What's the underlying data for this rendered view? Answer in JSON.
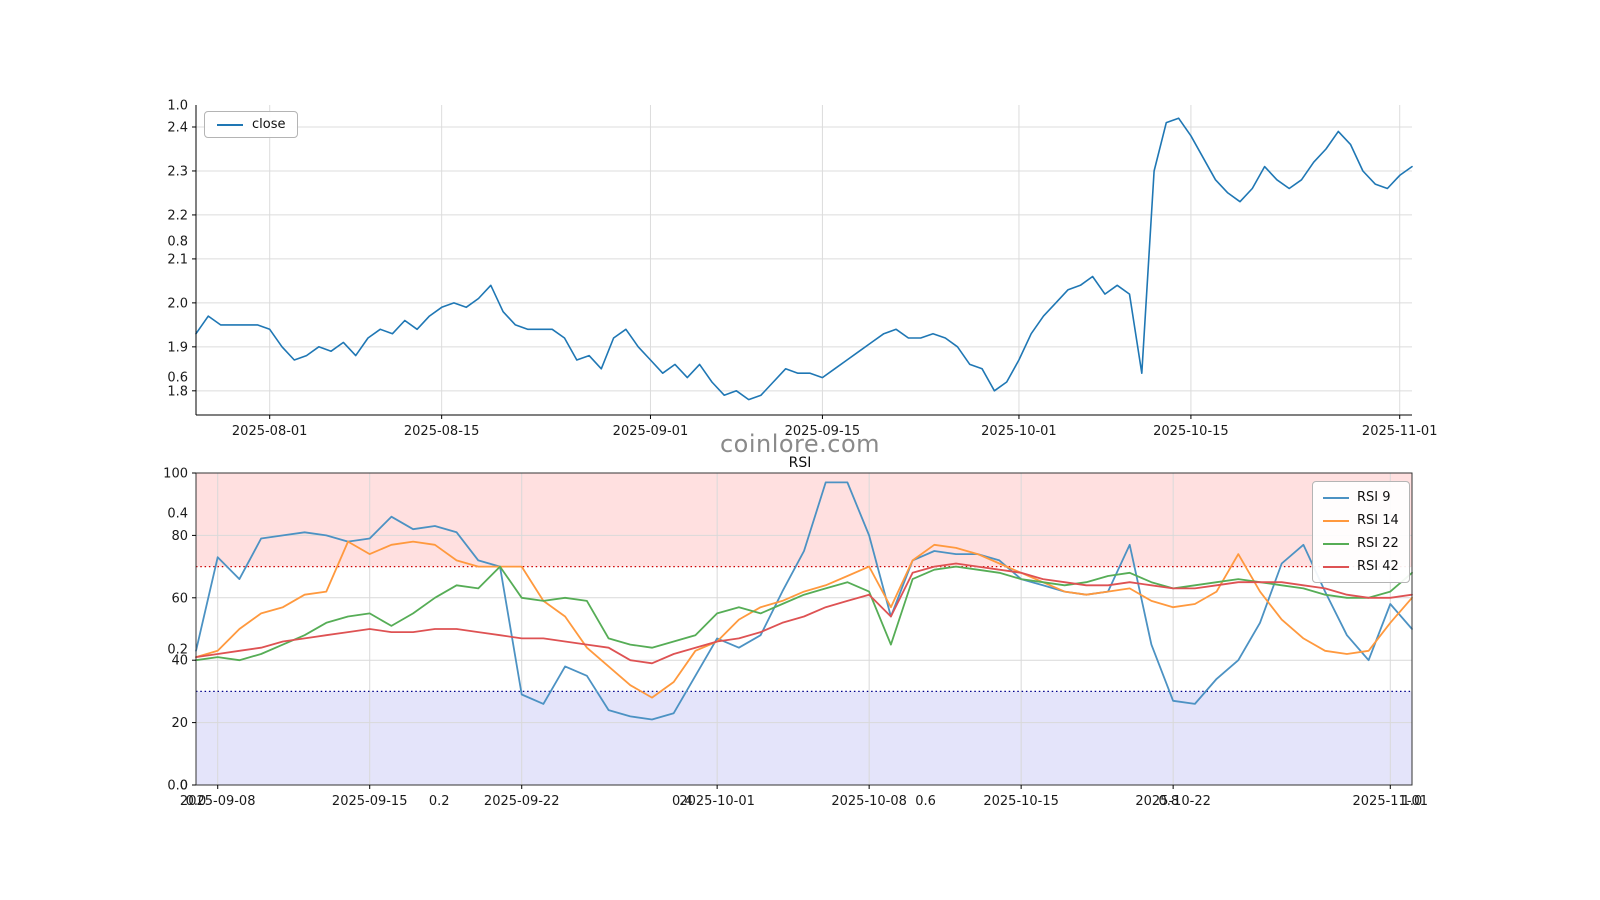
{
  "watermark": "coinlore.com",
  "overlay_axis": {
    "y_ticks": [
      "1.0",
      "0.8",
      "0.6",
      "0.4",
      "0.2",
      "0.0"
    ],
    "x_ticks": [
      "0.0",
      "0.2",
      "0.4",
      "0.6",
      "0.8",
      "1.0"
    ]
  },
  "chart_data": [
    {
      "type": "line",
      "legend_label": "close",
      "color": "#1f77b4",
      "grid": true,
      "ylim": [
        1.745,
        2.45
      ],
      "y_ticks": [
        "2.4",
        "2.3",
        "2.2",
        "2.1",
        "2.0",
        "1.9",
        "1.8"
      ],
      "x_ticks": [
        "2025-08-01",
        "2025-08-15",
        "2025-09-01",
        "2025-09-15",
        "2025-10-01",
        "2025-10-15",
        "2025-11-01"
      ],
      "dates": [
        "2025-07-26",
        "2025-07-27",
        "2025-07-28",
        "2025-07-29",
        "2025-07-30",
        "2025-07-31",
        "2025-08-01",
        "2025-08-02",
        "2025-08-03",
        "2025-08-04",
        "2025-08-05",
        "2025-08-06",
        "2025-08-07",
        "2025-08-08",
        "2025-08-09",
        "2025-08-10",
        "2025-08-11",
        "2025-08-12",
        "2025-08-13",
        "2025-08-14",
        "2025-08-15",
        "2025-08-16",
        "2025-08-17",
        "2025-08-18",
        "2025-08-19",
        "2025-08-20",
        "2025-08-21",
        "2025-08-22",
        "2025-08-23",
        "2025-08-24",
        "2025-08-25",
        "2025-08-26",
        "2025-08-27",
        "2025-08-28",
        "2025-08-29",
        "2025-08-30",
        "2025-08-31",
        "2025-09-01",
        "2025-09-02",
        "2025-09-03",
        "2025-09-04",
        "2025-09-05",
        "2025-09-06",
        "2025-09-07",
        "2025-09-08",
        "2025-09-09",
        "2025-09-10",
        "2025-09-11",
        "2025-09-12",
        "2025-09-13",
        "2025-09-14",
        "2025-09-15",
        "2025-09-16",
        "2025-09-17",
        "2025-09-18",
        "2025-09-19",
        "2025-09-20",
        "2025-09-21",
        "2025-09-22",
        "2025-09-23",
        "2025-09-24",
        "2025-09-25",
        "2025-09-26",
        "2025-09-27",
        "2025-09-28",
        "2025-09-29",
        "2025-09-30",
        "2025-10-01",
        "2025-10-02",
        "2025-10-03",
        "2025-10-04",
        "2025-10-05",
        "2025-10-06",
        "2025-10-07",
        "2025-10-08",
        "2025-10-09",
        "2025-10-10",
        "2025-10-11",
        "2025-10-12",
        "2025-10-13",
        "2025-10-14",
        "2025-10-15",
        "2025-10-16",
        "2025-10-17",
        "2025-10-18",
        "2025-10-19",
        "2025-10-20",
        "2025-10-21",
        "2025-10-22",
        "2025-10-23",
        "2025-10-24",
        "2025-10-25",
        "2025-10-26",
        "2025-10-27",
        "2025-10-28",
        "2025-10-29",
        "2025-10-30",
        "2025-10-31",
        "2025-11-01",
        "2025-11-02"
      ],
      "values": [
        1.93,
        1.97,
        1.95,
        1.95,
        1.95,
        1.95,
        1.94,
        1.9,
        1.87,
        1.88,
        1.9,
        1.89,
        1.91,
        1.88,
        1.92,
        1.94,
        1.93,
        1.96,
        1.94,
        1.97,
        1.99,
        2.0,
        1.99,
        2.01,
        2.04,
        1.98,
        1.95,
        1.94,
        1.94,
        1.94,
        1.92,
        1.87,
        1.88,
        1.85,
        1.92,
        1.94,
        1.9,
        1.87,
        1.84,
        1.86,
        1.83,
        1.86,
        1.82,
        1.79,
        1.8,
        1.78,
        1.79,
        1.82,
        1.85,
        1.84,
        1.84,
        1.83,
        1.85,
        1.87,
        1.89,
        1.91,
        1.93,
        1.94,
        1.92,
        1.92,
        1.93,
        1.92,
        1.9,
        1.86,
        1.85,
        1.8,
        1.82,
        1.87,
        1.93,
        1.97,
        2.0,
        2.03,
        2.04,
        2.06,
        2.02,
        2.04,
        2.02,
        1.84,
        2.3,
        2.41,
        2.42,
        2.38,
        2.33,
        2.28,
        2.25,
        2.23,
        2.26,
        2.31,
        2.28,
        2.26,
        2.28,
        2.32,
        2.35,
        2.39,
        2.36,
        2.3,
        2.27,
        2.26,
        2.29,
        2.31
      ]
    },
    {
      "type": "line",
      "title": "RSI",
      "grid": true,
      "ylim": [
        0,
        100
      ],
      "y_ticks": [
        "100",
        "80",
        "60",
        "40",
        "20",
        "0"
      ],
      "x_ticks": [
        "2025-09-08",
        "2025-09-15",
        "2025-09-22",
        "2025-10-01",
        "2025-10-08",
        "2025-10-15",
        "2025-10-22",
        "2025-11-01"
      ],
      "overbought_level": 70,
      "oversold_level": 30,
      "overbought_band_color": "rgba(255,0,0,0.12)",
      "oversold_band_color": "rgba(30,30,215,0.12)",
      "overbought_line_color": "#cc0000",
      "oversold_line_color": "#00008b",
      "dates": [
        "2025-09-07",
        "2025-09-08",
        "2025-09-09",
        "2025-09-10",
        "2025-09-11",
        "2025-09-12",
        "2025-09-13",
        "2025-09-14",
        "2025-09-15",
        "2025-09-16",
        "2025-09-17",
        "2025-09-18",
        "2025-09-19",
        "2025-09-20",
        "2025-09-21",
        "2025-09-22",
        "2025-09-23",
        "2025-09-24",
        "2025-09-25",
        "2025-09-26",
        "2025-09-27",
        "2025-09-28",
        "2025-09-29",
        "2025-09-30",
        "2025-10-01",
        "2025-10-02",
        "2025-10-03",
        "2025-10-04",
        "2025-10-05",
        "2025-10-06",
        "2025-10-07",
        "2025-10-08",
        "2025-10-09",
        "2025-10-10",
        "2025-10-11",
        "2025-10-12",
        "2025-10-13",
        "2025-10-14",
        "2025-10-15",
        "2025-10-16",
        "2025-10-17",
        "2025-10-18",
        "2025-10-19",
        "2025-10-20",
        "2025-10-21",
        "2025-10-22",
        "2025-10-23",
        "2025-10-24",
        "2025-10-25",
        "2025-10-26",
        "2025-10-27",
        "2025-10-28",
        "2025-10-29",
        "2025-10-30",
        "2025-10-31",
        "2025-11-01",
        "2025-11-02"
      ],
      "series": [
        {
          "name": "RSI 9",
          "color": "#4c92c3",
          "values": [
            43,
            73,
            66,
            79,
            80,
            81,
            80,
            78,
            79,
            86,
            82,
            83,
            81,
            72,
            70,
            29,
            26,
            38,
            35,
            24,
            22,
            21,
            23,
            35,
            47,
            44,
            48,
            62,
            75,
            97,
            97,
            80,
            54,
            72,
            75,
            74,
            74,
            72,
            66,
            64,
            62,
            61,
            62,
            77,
            45,
            27,
            26,
            34,
            40,
            52,
            71,
            77,
            62,
            48,
            40,
            58,
            50
          ]
        },
        {
          "name": "RSI 14",
          "color": "#ff993e",
          "values": [
            41,
            43,
            50,
            55,
            57,
            61,
            62,
            78,
            74,
            77,
            78,
            77,
            72,
            70,
            70,
            70,
            59,
            54,
            44,
            38,
            32,
            28,
            33,
            43,
            46,
            53,
            57,
            59,
            62,
            64,
            67,
            70,
            57,
            72,
            77,
            76,
            74,
            71,
            68,
            65,
            62,
            61,
            62,
            63,
            59,
            57,
            58,
            62,
            74,
            62,
            53,
            47,
            43,
            42,
            43,
            52,
            60
          ]
        },
        {
          "name": "RSI 22",
          "color": "#56ad56",
          "values": [
            40,
            41,
            40,
            42,
            45,
            48,
            52,
            54,
            55,
            51,
            55,
            60,
            64,
            63,
            70,
            60,
            59,
            60,
            59,
            47,
            45,
            44,
            46,
            48,
            55,
            57,
            55,
            58,
            61,
            63,
            65,
            62,
            45,
            66,
            69,
            70,
            69,
            68,
            66,
            65,
            64,
            65,
            67,
            68,
            65,
            63,
            64,
            65,
            66,
            65,
            64,
            63,
            61,
            60,
            60,
            62,
            68
          ]
        },
        {
          "name": "RSI 42",
          "color": "#de5253",
          "values": [
            41,
            42,
            43,
            44,
            46,
            47,
            48,
            49,
            50,
            49,
            49,
            50,
            50,
            49,
            48,
            47,
            47,
            46,
            45,
            44,
            40,
            39,
            42,
            44,
            46,
            47,
            49,
            52,
            54,
            57,
            59,
            61,
            54,
            68,
            70,
            71,
            70,
            69,
            68,
            66,
            65,
            64,
            64,
            65,
            64,
            63,
            63,
            64,
            65,
            65,
            65,
            64,
            63,
            61,
            60,
            60,
            61
          ]
        }
      ]
    }
  ]
}
